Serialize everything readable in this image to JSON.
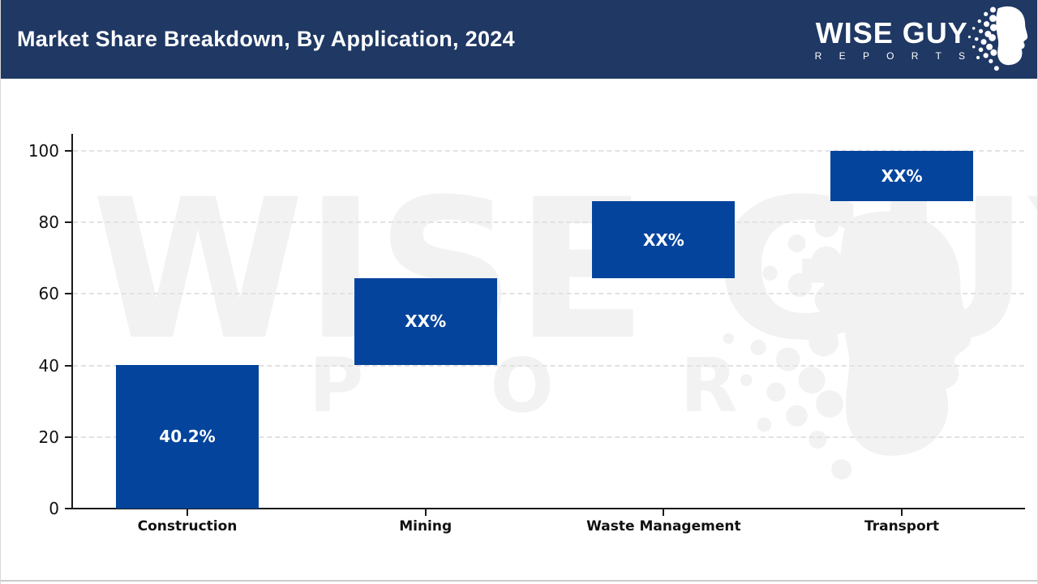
{
  "header": {
    "title": "Market Share Breakdown, By Application, 2024",
    "bg_color": "#1f3864",
    "logo": {
      "line1": "WISE GUY",
      "line2": "R E P O R T S"
    }
  },
  "watermark": {
    "line1": "WISE GUY",
    "line2": "P O R T S"
  },
  "chart_data": {
    "type": "bar",
    "subtype": "waterfall",
    "title": "Market Share Breakdown, By Application, 2024",
    "categories": [
      "Construction",
      "Mining",
      "Waste Management",
      "Transport"
    ],
    "bars": [
      {
        "category": "Construction",
        "start": 0,
        "end": 40.2,
        "label": "40.2%"
      },
      {
        "category": "Mining",
        "start": 40.2,
        "end": 64.4,
        "label": "XX%"
      },
      {
        "category": "Waste Management",
        "start": 64.4,
        "end": 85.9,
        "label": "XX%"
      },
      {
        "category": "Transport",
        "start": 85.9,
        "end": 100,
        "label": "XX%"
      }
    ],
    "xlabel": "",
    "ylabel": "",
    "ylim": [
      0,
      100
    ],
    "yticks": [
      0,
      20,
      40,
      60,
      80,
      100
    ],
    "grid": "horizontal-dashed",
    "legend": "none",
    "bar_color": "#04449c",
    "bar_label_color": "#ffffff",
    "axis_color": "#1a1a1a"
  }
}
